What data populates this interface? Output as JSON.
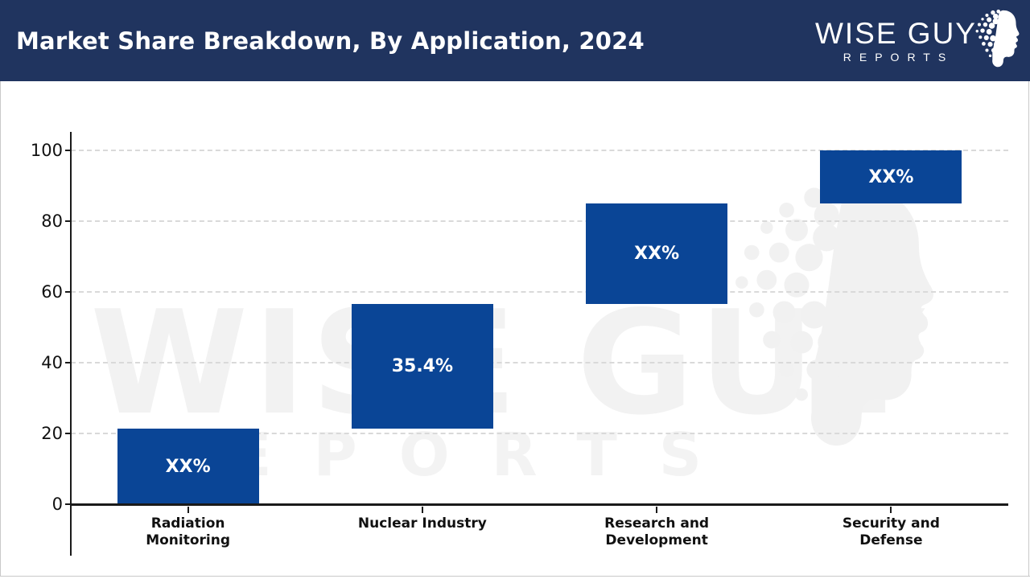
{
  "header": {
    "title": "Market Share Breakdown, By Application, 2024",
    "bg_color": "#20345f",
    "logo": {
      "line1": "WISE GUY",
      "line2": "REPORTS"
    }
  },
  "watermark": {
    "line1": "WISE GUY",
    "line2": "REPORTS"
  },
  "chart_data": {
    "type": "bar",
    "subtype": "waterfall",
    "title": "Market Share Breakdown, By Application, 2024",
    "xlabel": "",
    "ylabel": "",
    "categories": [
      "Radiation Monitoring",
      "Nuclear Industry",
      "Research and Development",
      "Security and Defense"
    ],
    "category_lines": [
      [
        "Radiation",
        "Monitoring"
      ],
      [
        "Nuclear Industry"
      ],
      [
        "Research and",
        "Development"
      ],
      [
        "Security and",
        "Defense"
      ]
    ],
    "segments": [
      {
        "category": "Radiation Monitoring",
        "start": 0,
        "end": 21.3,
        "label": "XX%"
      },
      {
        "category": "Nuclear Industry",
        "start": 21.3,
        "end": 56.7,
        "label": "35.4%"
      },
      {
        "category": "Research and Development",
        "start": 56.7,
        "end": 85.0,
        "label": "XX%"
      },
      {
        "category": "Security and Defense",
        "start": 85.0,
        "end": 100.0,
        "label": "XX%"
      }
    ],
    "yticks": [
      0,
      20,
      40,
      60,
      80,
      100
    ],
    "ylim": [
      0,
      100
    ],
    "grid": "horizontal-dashed",
    "legend": "none",
    "bar_color": "#0a4596",
    "bar_label_color": "#ffffff",
    "gridline_color": "#d9d9d9",
    "axis_color": "#1a1a1a"
  }
}
